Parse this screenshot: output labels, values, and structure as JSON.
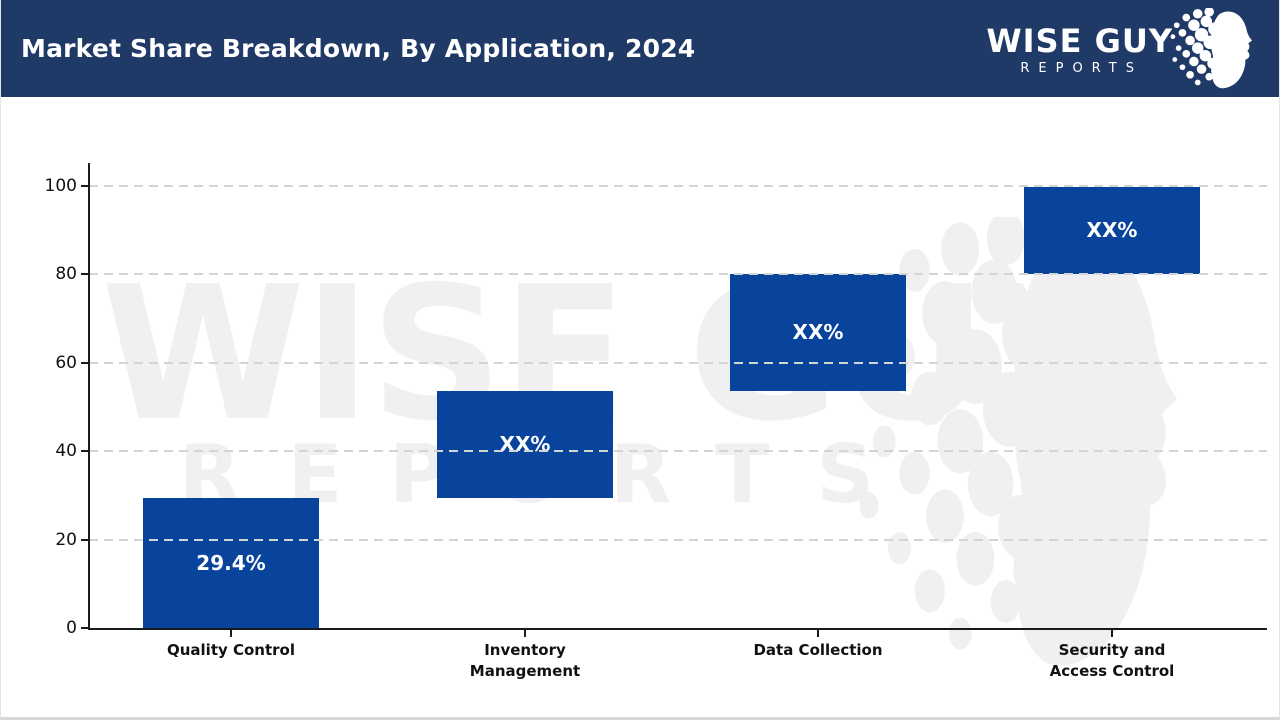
{
  "header": {
    "title": "Market Share Breakdown, By Application, 2024",
    "logo": {
      "line1": "WISE GUY",
      "line2": "REPORTS"
    }
  },
  "watermark": {
    "line1": "WISE GUY",
    "line2": "REPORTS"
  },
  "colors": {
    "header_bg": "#203a68",
    "bar_fill": "#08449b",
    "grid": "#d4d4d4",
    "axis": "#1a1a1a",
    "watermark": "#f0f0f2",
    "bar_label_text": "#ffffff"
  },
  "chart_data": {
    "type": "bar",
    "subtype": "waterfall-floating-segments",
    "title": "Market Share Breakdown, By Application, 2024",
    "categories": [
      "Quality Control",
      "Inventory\nManagement",
      "Data Collection",
      "Security and\nAccess Control"
    ],
    "segments": [
      {
        "category": "Quality Control",
        "start": 0,
        "end": 29.4,
        "label": "29.4%"
      },
      {
        "category": "Inventory Management",
        "start": 29.5,
        "end": 53.7,
        "label": "XX%"
      },
      {
        "category": "Data Collection",
        "start": 53.7,
        "end": 80.2,
        "label": "XX%"
      },
      {
        "category": "Security and Access Control",
        "start": 80.2,
        "end": 99.8,
        "label": "XX%"
      }
    ],
    "ylim": [
      0,
      100
    ],
    "yticks": [
      0,
      20,
      40,
      60,
      80,
      100
    ],
    "xlabel": "",
    "ylabel": "",
    "grid": "horizontal-dashed",
    "legend": null
  }
}
